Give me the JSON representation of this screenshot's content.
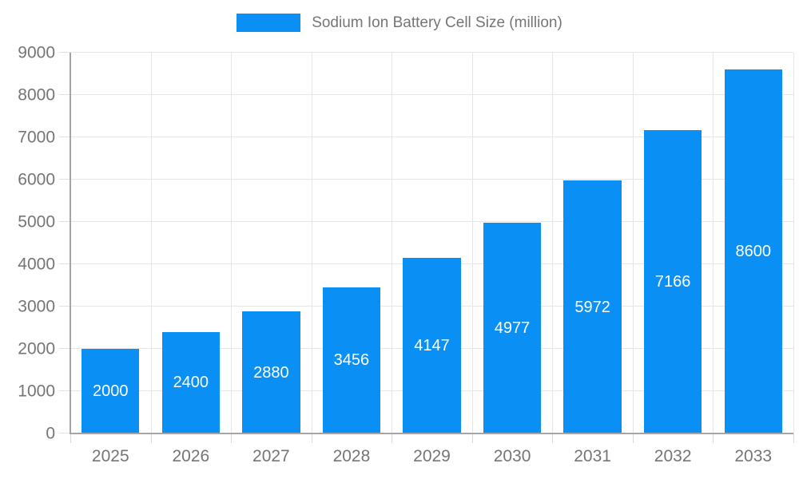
{
  "chart_data": {
    "type": "bar",
    "title": "Sodium Ion Battery Cell Size (million)",
    "legend": {
      "position": "top",
      "label": "Sodium Ion Battery Cell Size (million)"
    },
    "categories": [
      "2025",
      "2026",
      "2027",
      "2028",
      "2029",
      "2030",
      "2031",
      "2032",
      "2033"
    ],
    "values": [
      2000,
      2400,
      2880,
      3456,
      4147,
      4977,
      5972,
      7166,
      8600
    ],
    "xlabel": "",
    "ylabel": "",
    "ylim": [
      0,
      9000
    ],
    "ytick_interval": 1000,
    "grid": true,
    "bar_width_fraction": 0.72,
    "colors": {
      "bar": "#0a90f5",
      "bar_label": "#ffffff",
      "grid": "#e6e6e6",
      "axis": "#a5a5a5",
      "tick": "#d9d9d9",
      "text": "#757575",
      "background": "#ffffff"
    }
  }
}
